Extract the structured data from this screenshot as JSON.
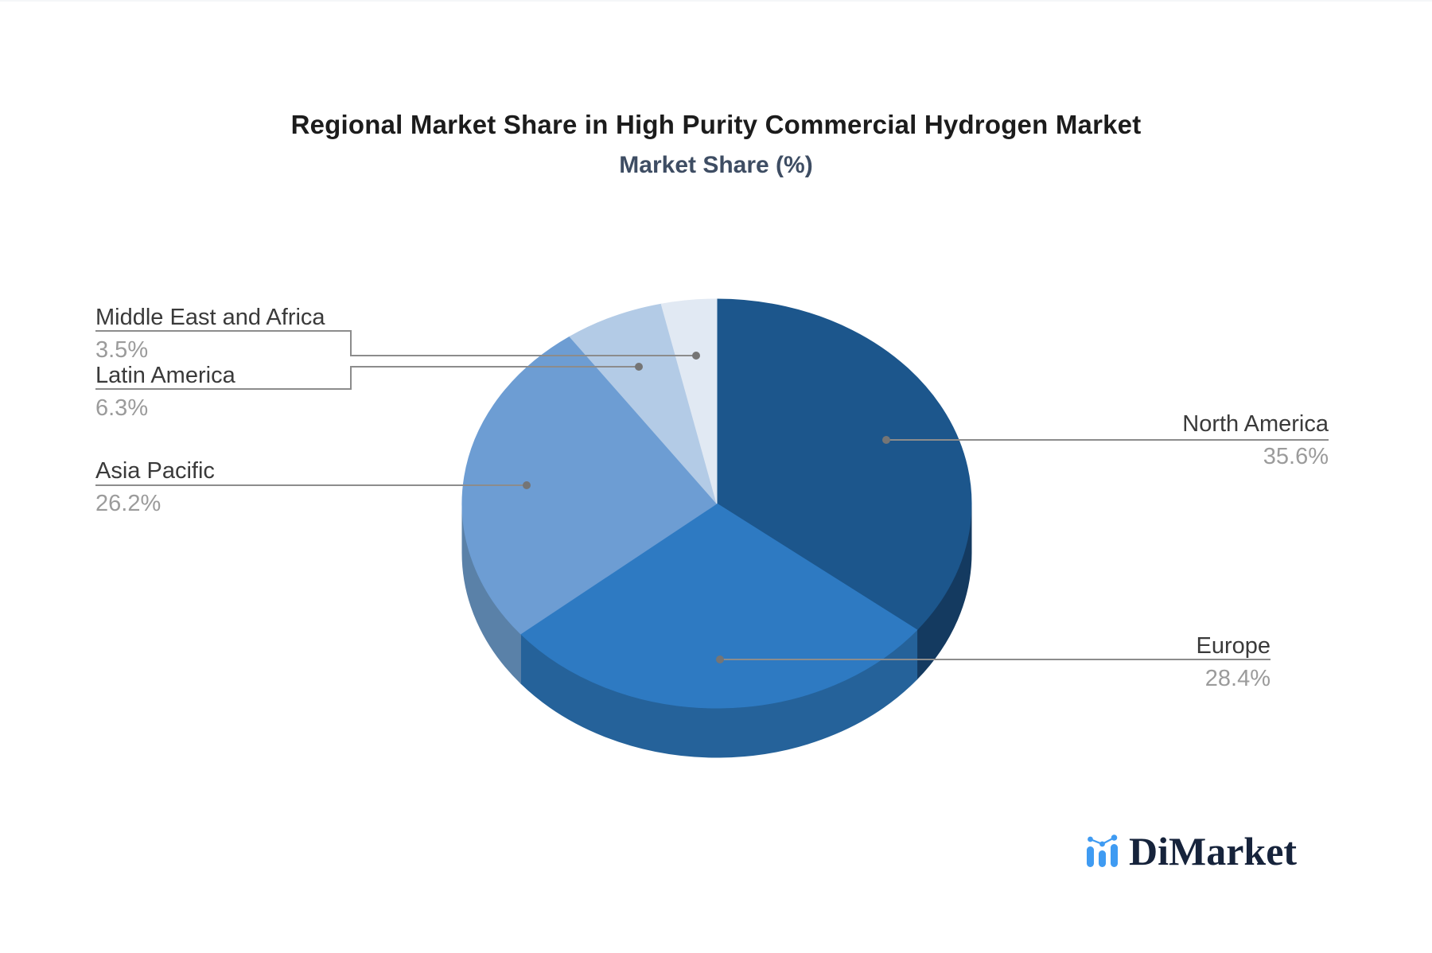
{
  "page": {
    "background": "#ffffff"
  },
  "chart_data": {
    "type": "pie",
    "title": "Regional Market Share in High Purity Commercial Hydrogen Market",
    "subtitle": "Market Share (%)",
    "unit": "%",
    "direction": "clockwise",
    "start": "12-oclock",
    "style": "3d-pie",
    "legend": "none (leader-line labels)",
    "slices": [
      {
        "label": "North America",
        "value": 35.6,
        "pct_text": "35.6%",
        "color": "#1c568c",
        "side_color": "#143a60"
      },
      {
        "label": "Europe",
        "value": 28.4,
        "pct_text": "28.4%",
        "color": "#2e7ac2",
        "side_color": "#25629a"
      },
      {
        "label": "Asia Pacific",
        "value": 26.2,
        "pct_text": "26.2%",
        "color": "#6d9dd3",
        "side_color": "#5a81a8"
      },
      {
        "label": "Latin America",
        "value": 6.3,
        "pct_text": "6.3%",
        "color": "#b3cbe6",
        "side_color": "#8fabc9"
      },
      {
        "label": "Middle East and Africa",
        "value": 3.5,
        "pct_text": "3.5%",
        "color": "#e1e9f3",
        "side_color": "#c2cedd"
      }
    ],
    "colors": {
      "label_text": "#3a3a3a",
      "pct_text": "#9b9b9b",
      "leader_line": "#8c8c8c",
      "leader_dot": "#757575",
      "title_text": "#1c1c1c",
      "subtitle_text": "#3e4d63"
    }
  },
  "brand": {
    "text": "DiMarket",
    "icon": "bar-chart-logo-icon",
    "icon_color": "#3f9bf2",
    "text_color": "#16233b"
  }
}
